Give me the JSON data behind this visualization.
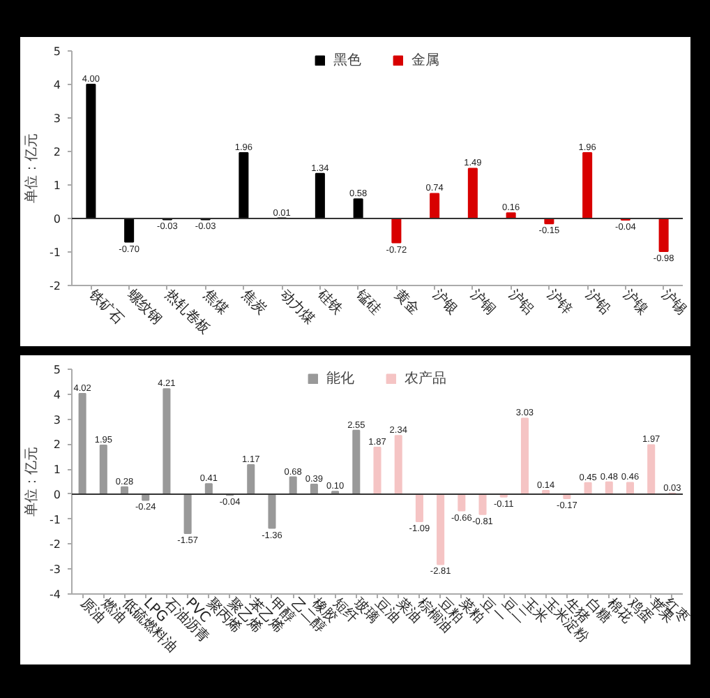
{
  "chart_data": [
    {
      "type": "bar",
      "ylabel": "单位：亿元",
      "legend": "top",
      "ylim": [
        -2,
        5
      ],
      "yticks": [
        -2,
        -1,
        0,
        1,
        2,
        3,
        4,
        5
      ],
      "categories": [
        "铁矿石",
        "螺纹钢",
        "热轧卷板",
        "焦煤",
        "焦炭",
        "动力煤",
        "硅铁",
        "锰硅",
        "黄金",
        "沪银",
        "沪铜",
        "沪铝",
        "沪锌",
        "沪铅",
        "沪镍",
        "沪锡"
      ],
      "series": [
        {
          "name": "黑色",
          "color": "#000000",
          "values": [
            4.0,
            -0.7,
            -0.03,
            -0.03,
            1.96,
            0.01,
            1.34,
            0.58,
            null,
            null,
            null,
            null,
            null,
            null,
            null,
            null
          ],
          "value_labels": [
            "4.00",
            "-0.70",
            "-0.03",
            "-0.03",
            "1.96",
            "0.01",
            "1.34",
            "0.58",
            null,
            null,
            null,
            null,
            null,
            null,
            null,
            null
          ]
        },
        {
          "name": "金属",
          "color": "#d80000",
          "values": [
            null,
            null,
            null,
            null,
            null,
            null,
            null,
            null,
            -0.72,
            0.74,
            1.49,
            0.16,
            -0.15,
            1.96,
            -0.04,
            -0.98
          ],
          "value_labels": [
            null,
            null,
            null,
            null,
            null,
            null,
            null,
            null,
            "-0.72",
            "0.74",
            "1.49",
            "0.16",
            "-0.15",
            "1.96",
            "-0.04",
            "-0.98"
          ]
        }
      ],
      "ref_lines": [
        {
          "axis": "y",
          "value": 0,
          "color": "#333333"
        }
      ]
    },
    {
      "type": "bar",
      "ylabel": "单位：亿元",
      "legend": "top",
      "ylim": [
        -4,
        5
      ],
      "yticks": [
        -4,
        -3,
        -2,
        -1,
        0,
        1,
        2,
        3,
        4,
        5
      ],
      "categories": [
        "原油",
        "燃油",
        "低硫燃料油",
        "LPG",
        "石油沥青",
        "PVC",
        "聚丙烯",
        "聚乙烯",
        "苯乙烯",
        "甲醇",
        "乙二醇",
        "橡胶",
        "短纤",
        "玻璃",
        "豆油",
        "菜油",
        "棕榈油",
        "豆粕",
        "菜粕",
        "豆一",
        "豆二",
        "玉米",
        "玉米淀粉",
        "生猪",
        "白糖",
        "棉花",
        "鸡蛋",
        "苹果",
        "红枣"
      ],
      "series": [
        {
          "name": "能化",
          "color": "#999999",
          "values": [
            4.02,
            1.95,
            0.28,
            -0.24,
            4.21,
            -1.57,
            0.41,
            -0.04,
            1.17,
            -1.36,
            0.68,
            0.39,
            0.1,
            2.55,
            null,
            null,
            null,
            null,
            null,
            null,
            null,
            null,
            null,
            null,
            null,
            null,
            null,
            null,
            null
          ],
          "value_labels": [
            "4.02",
            "1.95",
            "0.28",
            "-0.24",
            "4.21",
            "-1.57",
            "0.41",
            "-0.04",
            "1.17",
            "-1.36",
            "0.68",
            "0.39",
            "0.10",
            "2.55",
            null,
            null,
            null,
            null,
            null,
            null,
            null,
            null,
            null,
            null,
            null,
            null,
            null,
            null,
            null
          ]
        },
        {
          "name": "农产品",
          "color": "#f5c4c4",
          "values": [
            null,
            null,
            null,
            null,
            null,
            null,
            null,
            null,
            null,
            null,
            null,
            null,
            null,
            null,
            1.87,
            2.34,
            -1.09,
            -2.81,
            -0.66,
            -0.81,
            -0.11,
            3.03,
            0.14,
            -0.17,
            0.45,
            0.48,
            0.46,
            1.97,
            0.03
          ],
          "value_labels": [
            null,
            null,
            null,
            null,
            null,
            null,
            null,
            null,
            null,
            null,
            null,
            null,
            null,
            null,
            "1.87",
            "2.34",
            "-1.09",
            "-2.81",
            "-0.66",
            "-0.81",
            "-0.11",
            "3.03",
            "0.14",
            "-0.17",
            "0.45",
            "0.48",
            "0.46",
            "1.97",
            "0.03"
          ]
        }
      ],
      "ref_lines": [
        {
          "axis": "y",
          "value": 0,
          "color": "#333333"
        }
      ]
    }
  ]
}
